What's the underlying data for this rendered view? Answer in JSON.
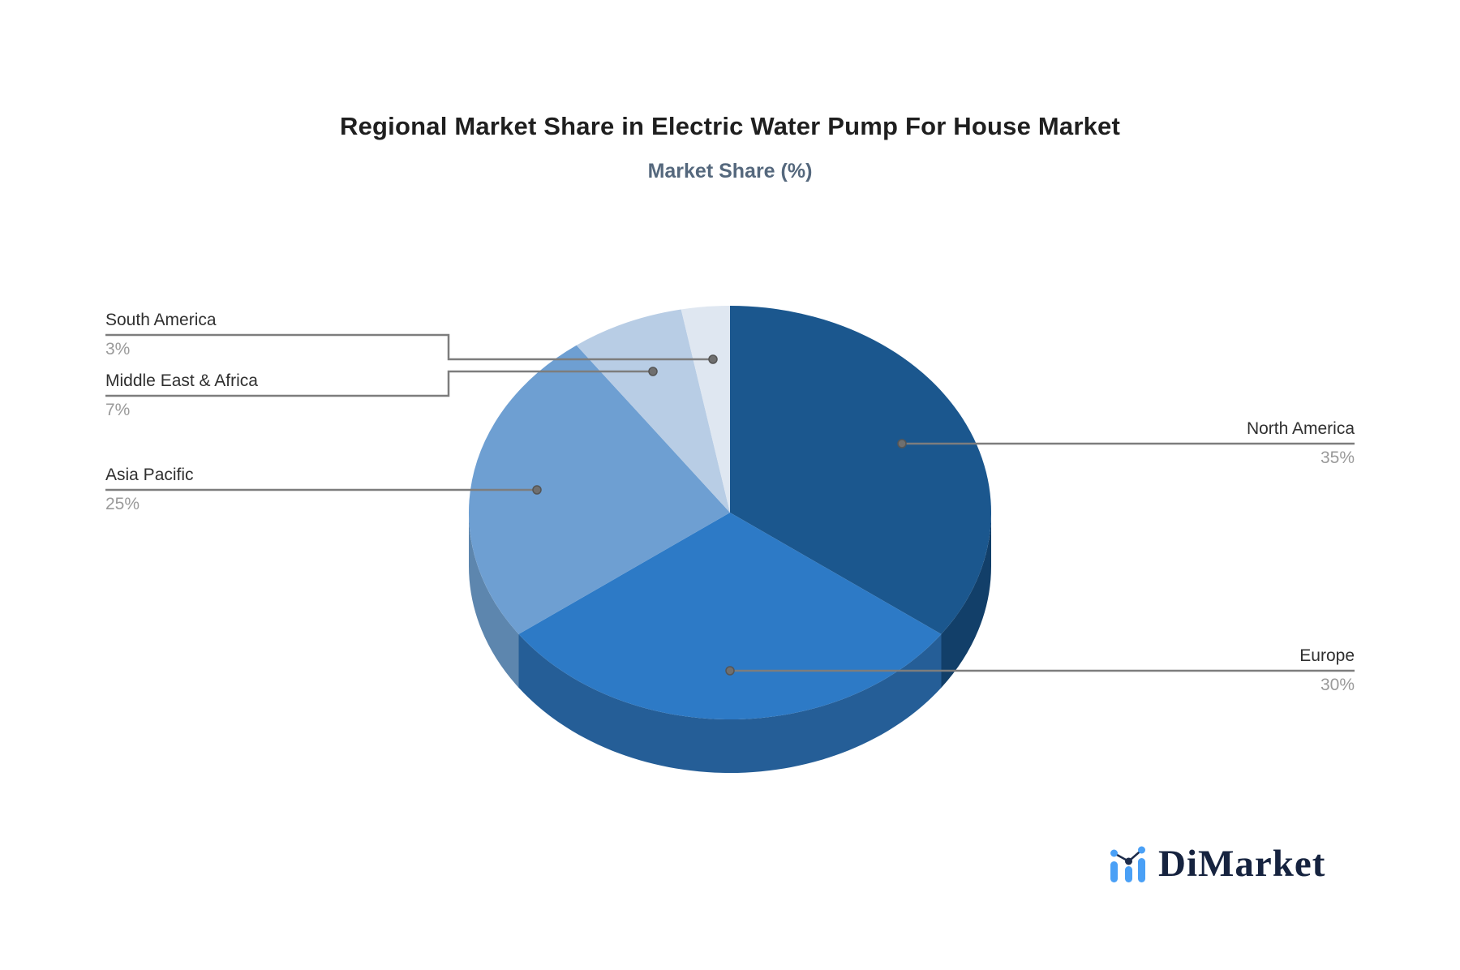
{
  "chart_data": {
    "type": "pie",
    "title": "Regional Market Share in Electric Water Pump For House Market",
    "subtitle": "Market Share (%)",
    "unit": "%",
    "effect": "3d",
    "start_angle_deg": 0,
    "direction": "clockwise",
    "legend_position": "callout-labels",
    "slices": [
      {
        "label": "North America",
        "value": 35,
        "pct_label": "35%",
        "color": "#1b578e",
        "side_color": "#123f69"
      },
      {
        "label": "Europe",
        "value": 30,
        "pct_label": "30%",
        "color": "#2d7ac6",
        "side_color": "#255e97"
      },
      {
        "label": "Asia Pacific",
        "value": 25,
        "pct_label": "25%",
        "color": "#6e9fd2",
        "side_color": "#5d86ae"
      },
      {
        "label": "Middle East & Africa",
        "value": 7,
        "pct_label": "7%",
        "color": "#b8cde5",
        "side_color": "#a7bdd6"
      },
      {
        "label": "South America",
        "value": 3,
        "pct_label": "3%",
        "color": "#dfe7f1",
        "side_color": "#c9d4e2"
      }
    ]
  },
  "palette": {
    "title": "#1f1f1f",
    "subtitle": "#55687d",
    "label_text": "#303030",
    "pct_text": "#9a9a9a",
    "leader_line": "#7d7d7d",
    "leader_dot": "#6f6f6f",
    "logo_text": "#16233f"
  },
  "logo": {
    "text": "DiMarket",
    "icon_bar_color": "#4aa0f6",
    "icon_line_color": "#1d2c4b"
  }
}
